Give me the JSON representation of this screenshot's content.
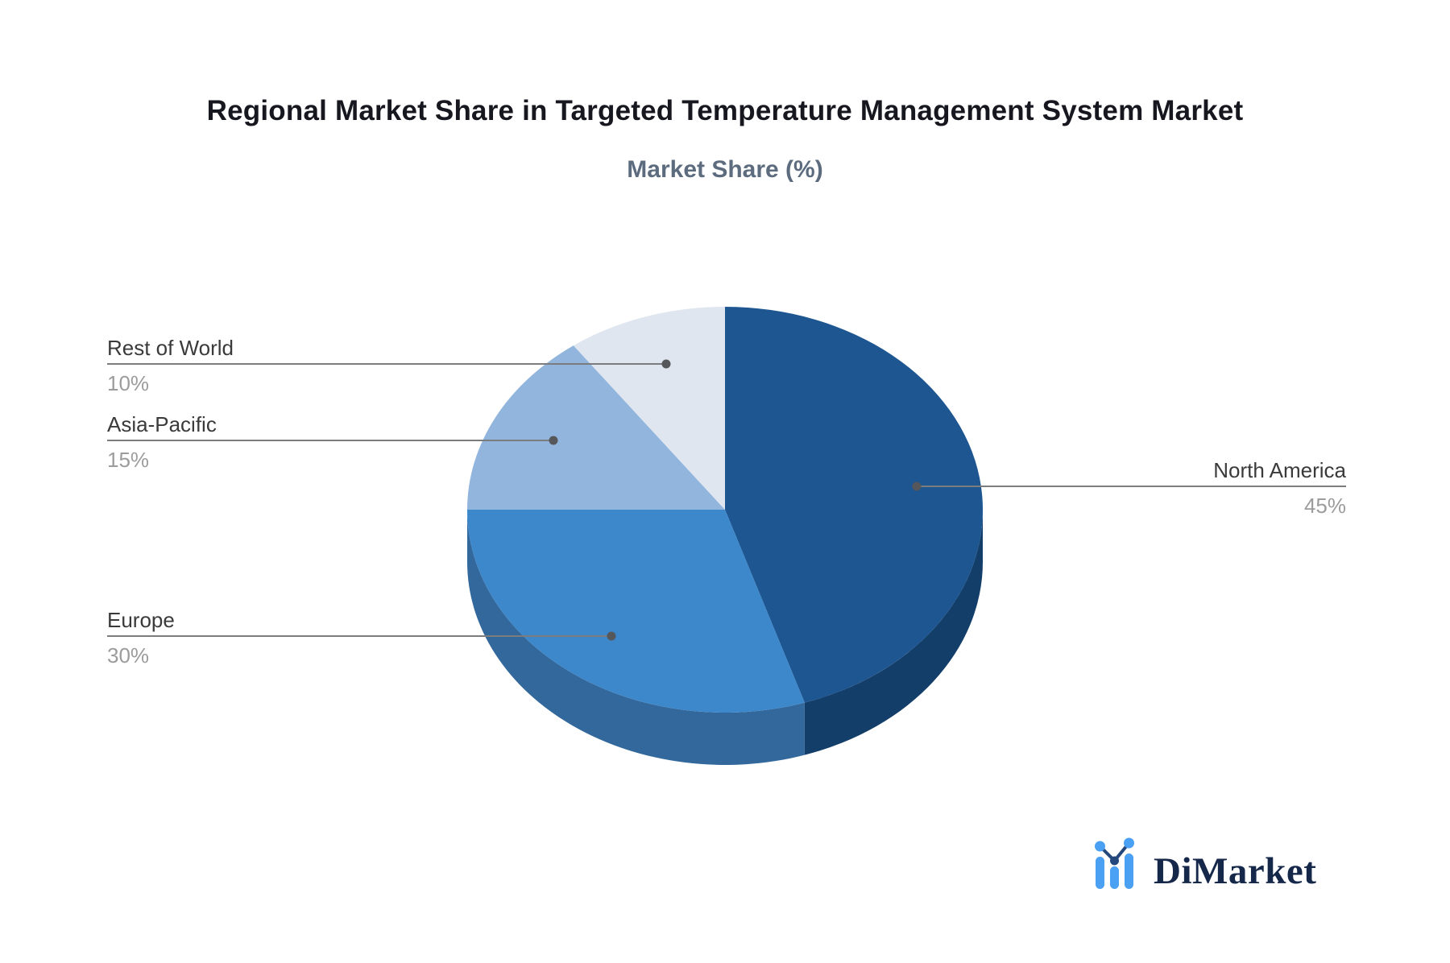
{
  "chart_data": {
    "type": "pie",
    "title": "Regional Market Share in Targeted Temperature Management System Market",
    "subtitle": "Market Share (%)",
    "unit": "%",
    "start_angle": "12-oclock",
    "direction": "clockwise",
    "effect": "3d",
    "legend": "none (callout labels with leader lines)",
    "labels": [
      "North America",
      "Europe",
      "Asia-Pacific",
      "Rest of World"
    ],
    "values": [
      45,
      30,
      15,
      10
    ],
    "slices": [
      {
        "label": "North America",
        "value": 45,
        "value_label": "45%",
        "color": "#1d5691",
        "side_color": "#133e6a"
      },
      {
        "label": "Europe",
        "value": 30,
        "value_label": "30%",
        "color": "#3d87cb",
        "side_color": "#32689c"
      },
      {
        "label": "Asia-Pacific",
        "value": 15,
        "value_label": "15%",
        "color": "#92b5de",
        "side_color": "#6f93bd"
      },
      {
        "label": "Rest of World",
        "value": 10,
        "value_label": "10%",
        "color": "#dfe6f0",
        "side_color": "#b9c3d2"
      }
    ],
    "style": {
      "leader_line_color": "#7b7c7e",
      "leader_dot_color": "#56575a",
      "label_color": "#3a3a3a",
      "value_color": "#9c9c9c",
      "title_color": "#17171f",
      "subtitle_color": "#5c6c7e"
    }
  },
  "logo": {
    "text": "DiMarket",
    "icon": "bar-chart-logo-icon",
    "text_color": "#16284a",
    "icon_bar_color": "#4aa0f2",
    "icon_line_color": "#24477c"
  }
}
